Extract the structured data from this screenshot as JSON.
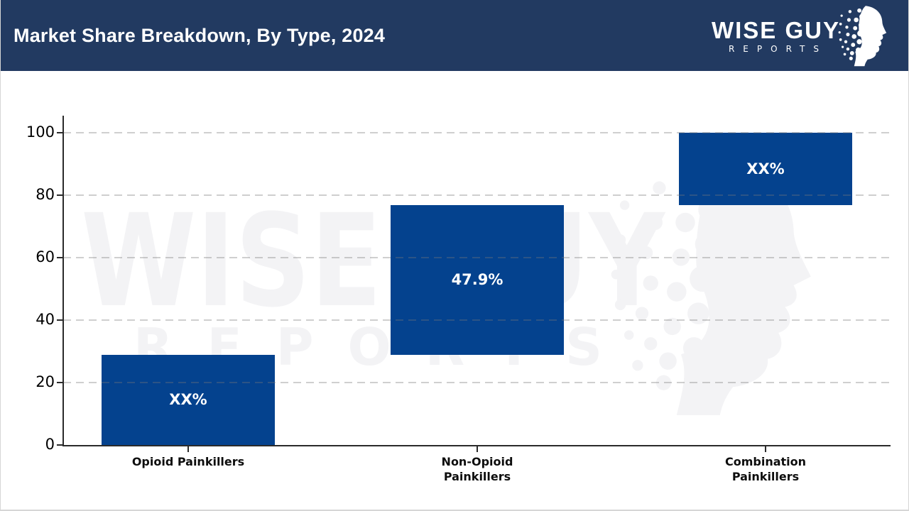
{
  "header": {
    "title": "Market Share Breakdown, By Type, 2024",
    "logo_line1": "WISE GUY",
    "logo_line2": "REPORTS"
  },
  "watermark": {
    "line1": "WISE GUY",
    "line2": "REPORTS"
  },
  "chart_data": {
    "type": "waterfall",
    "title": "Market Share Breakdown, By Type, 2024",
    "unit": "%",
    "categories": [
      "Opioid Painkillers",
      "Non-Opioid Painkillers",
      "Combination Painkillers"
    ],
    "category_lines": [
      [
        "Opioid Painkillers"
      ],
      [
        "Non-Opioid",
        "Painkillers"
      ],
      [
        "Combination",
        "Painkillers"
      ]
    ],
    "segments": [
      {
        "category": "Opioid Painkillers",
        "start": 0,
        "end": 28.9,
        "label": "XX%"
      },
      {
        "category": "Non-Opioid Painkillers",
        "start": 28.9,
        "end": 76.8,
        "label": "47.9%"
      },
      {
        "category": "Combination Painkillers",
        "start": 76.8,
        "end": 100,
        "label": "XX%"
      }
    ],
    "yticks": [
      0,
      20,
      40,
      60,
      80,
      100
    ],
    "ylim": [
      0,
      100
    ],
    "grid": "horizontal-dashed",
    "legend": "none",
    "bar_color": "#04428e",
    "bar_label_color": "#ffffff",
    "axis_color": "#2a2a2a",
    "header_bg_color": "#223a61",
    "watermark_color": "#f3f3f5"
  }
}
